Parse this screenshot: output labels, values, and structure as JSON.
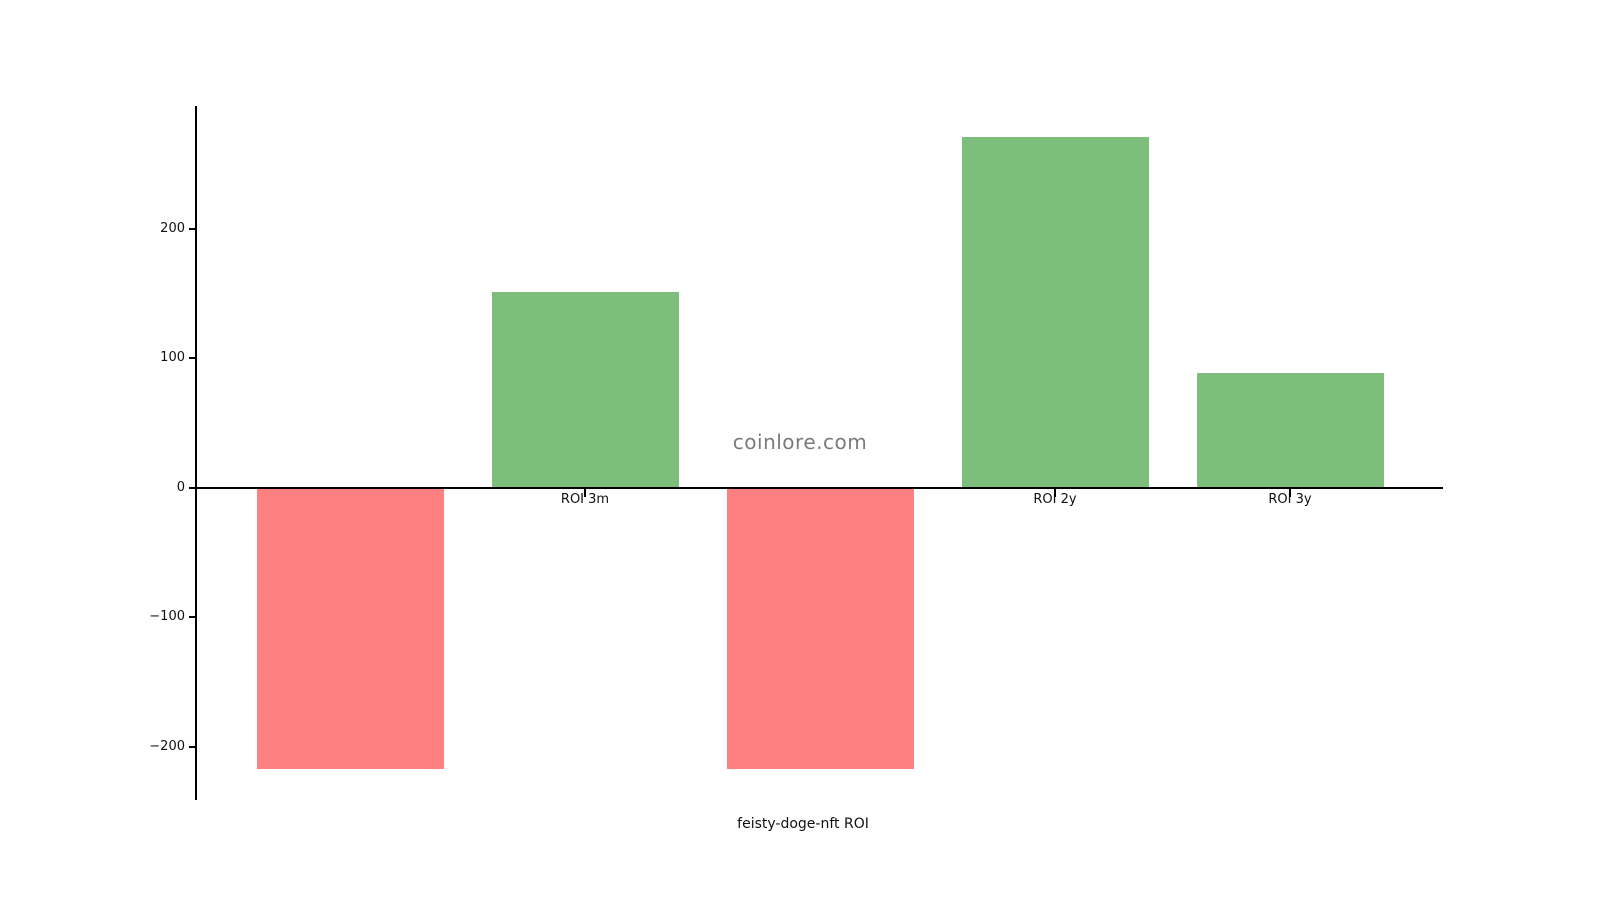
{
  "watermark": "coinlore.com",
  "chart_data": {
    "type": "bar",
    "title": "feisty-doge-nft ROI",
    "categories": [
      "",
      "ROI 3m",
      "",
      "ROI 2y",
      "ROI 3y"
    ],
    "values": [
      -217,
      151,
      -217,
      271,
      89
    ],
    "colors": {
      "positive": "#7dbe7d",
      "negative": "#ff8080"
    },
    "yticks": [
      {
        "value": 200,
        "label": "200"
      },
      {
        "value": 100,
        "label": "100"
      },
      {
        "value": 0,
        "label": "0"
      },
      {
        "value": -100,
        "label": "−100"
      },
      {
        "value": -200,
        "label": "−200"
      }
    ],
    "ylim": [
      -241,
      295
    ],
    "xlabel": "",
    "ylabel": "",
    "grid": false,
    "x_axis_position": "zero",
    "legend": "none"
  }
}
